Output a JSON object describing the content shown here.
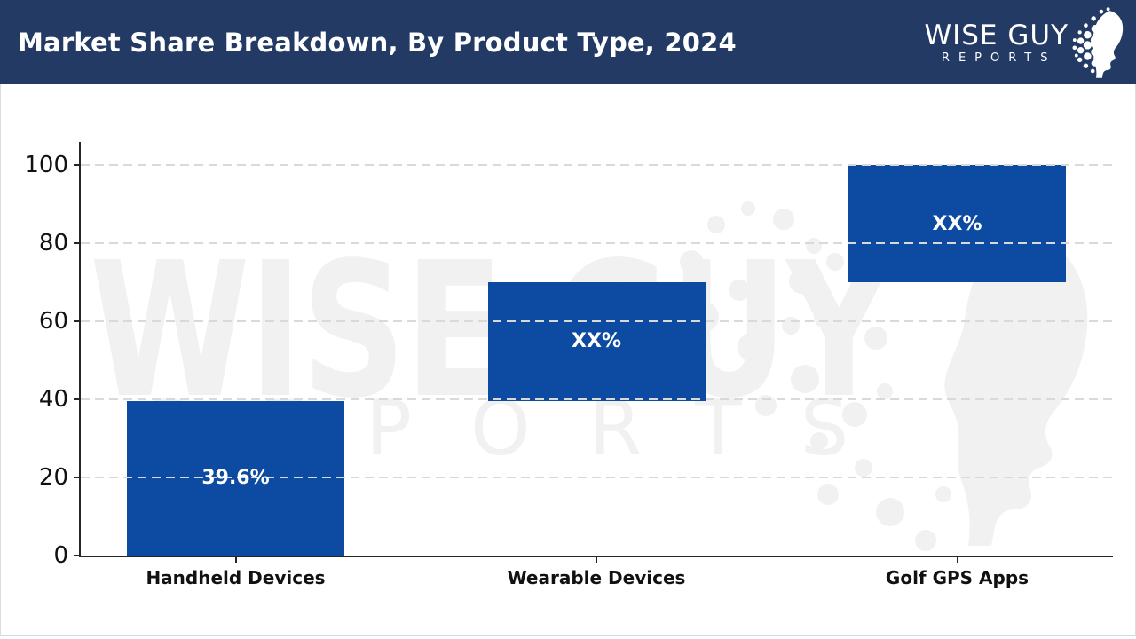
{
  "header": {
    "title": "Market Share Breakdown, By Product Type, 2024",
    "logo": {
      "line1": "WISE GUY",
      "line2": "REPORTS"
    }
  },
  "watermark": {
    "line1": "WISE GUY",
    "line2": "REPORTS"
  },
  "colors": {
    "header_bg": "#223A64",
    "bar_fill": "#0D4BA3",
    "bar_label_text": "#FFFFFF",
    "grid_line": "#D9D9D9",
    "axis_line": "#262626",
    "tick_text": "#111111",
    "watermark": "#F1F1F1",
    "logo_text": "#FFFFFF"
  },
  "chart_data": {
    "type": "bar",
    "subtype": "floating-waterfall",
    "title": "Market Share Breakdown, By Product Type, 2024",
    "categories": [
      "Handheld Devices",
      "Wearable Devices",
      "Golf GPS Apps"
    ],
    "bars": [
      {
        "category": "Handheld Devices",
        "start": 0,
        "end": 39.6,
        "label": "39.6%"
      },
      {
        "category": "Wearable Devices",
        "start": 39.6,
        "end": 70,
        "label": "XX%"
      },
      {
        "category": "Golf GPS Apps",
        "start": 70,
        "end": 100,
        "label": "XX%"
      }
    ],
    "xlabel": "",
    "ylabel": "",
    "ylim": [
      0,
      100
    ],
    "yticks": [
      0,
      20,
      40,
      60,
      80,
      100
    ],
    "grid": "horizontal-dashed",
    "legend": "none"
  }
}
